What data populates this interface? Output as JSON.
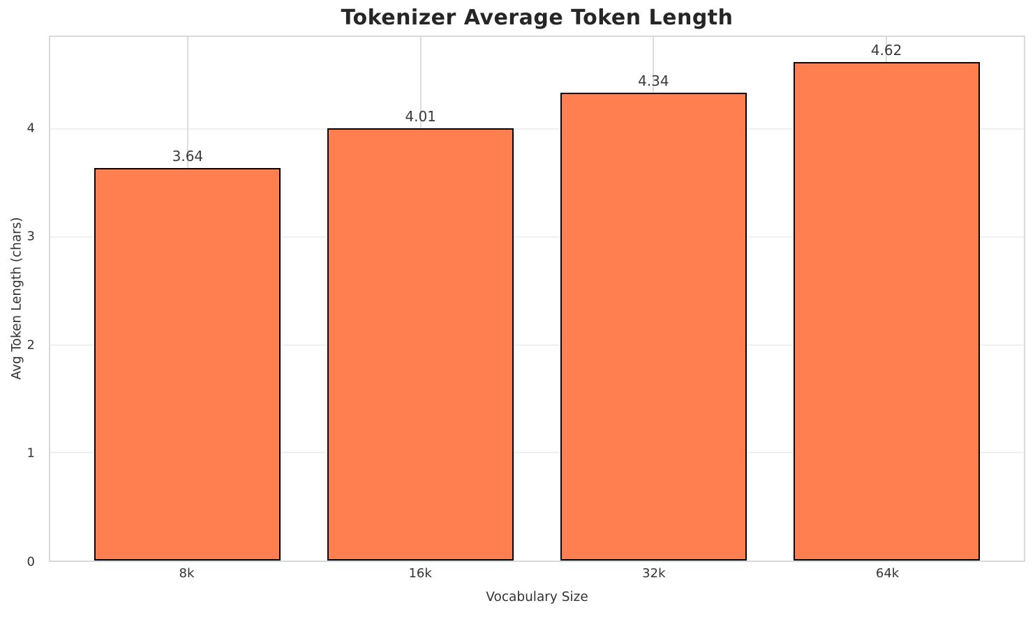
{
  "chart_data": {
    "type": "bar",
    "title": "Tokenizer Average Token Length",
    "xlabel": "Vocabulary Size",
    "ylabel": "Avg Token Length (chars)",
    "categories": [
      "8k",
      "16k",
      "32k",
      "64k"
    ],
    "values": [
      3.64,
      4.01,
      4.34,
      4.62
    ],
    "value_labels": [
      "3.64",
      "4.01",
      "4.34",
      "4.62"
    ],
    "yticks": [
      0,
      1,
      2,
      3,
      4
    ],
    "ylim": [
      0,
      4.855
    ],
    "xlim": [
      -0.59,
      3.59
    ],
    "bar_width": 0.8,
    "grid": true,
    "legend": false,
    "bar_color": "#FF7F50",
    "bar_edge_color": "#000000"
  }
}
